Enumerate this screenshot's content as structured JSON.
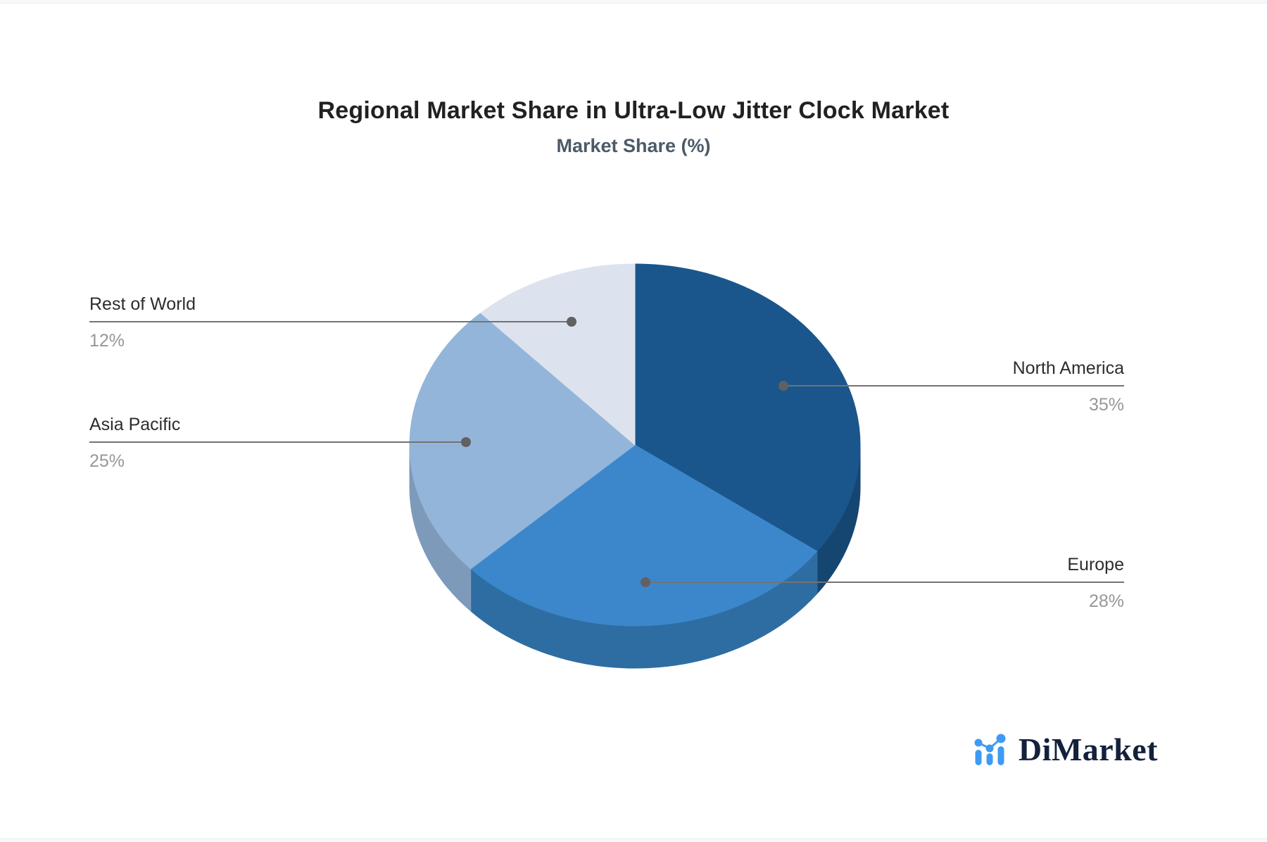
{
  "page": {
    "title": "Regional Market Share in Ultra-Low Jitter Clock Market",
    "subtitle": "Market Share (%)"
  },
  "brand": {
    "name": "DiMarket",
    "icon": "bar-chart-trend-icon",
    "icon_color": "#3E9BF5",
    "text_color": "#14213D"
  },
  "callout_line_color": "#737373",
  "callout_dot_color": "#616161",
  "chart_data": {
    "type": "pie",
    "style": "3d",
    "title": "Regional Market Share in Ultra-Low Jitter Clock Market",
    "subtitle": "Market Share (%)",
    "unit": "%",
    "start_angle": "top",
    "direction": "clockwise",
    "legend_position": "none",
    "slices": [
      {
        "label": "North America",
        "value": 35,
        "value_label": "35%",
        "color": "#1A568C",
        "side_color": "#154672",
        "callout_side": "right"
      },
      {
        "label": "Europe",
        "value": 28,
        "value_label": "28%",
        "color": "#3C87CB",
        "side_color": "#2E6DA2",
        "callout_side": "right"
      },
      {
        "label": "Asia Pacific",
        "value": 25,
        "value_label": "25%",
        "color": "#93B5D9",
        "side_color": "#7E9ABA",
        "callout_side": "left"
      },
      {
        "label": "Rest of World",
        "value": 12,
        "value_label": "12%",
        "color": "#DCE3EE",
        "side_color": "#B9C5D6",
        "callout_side": "left"
      }
    ]
  }
}
